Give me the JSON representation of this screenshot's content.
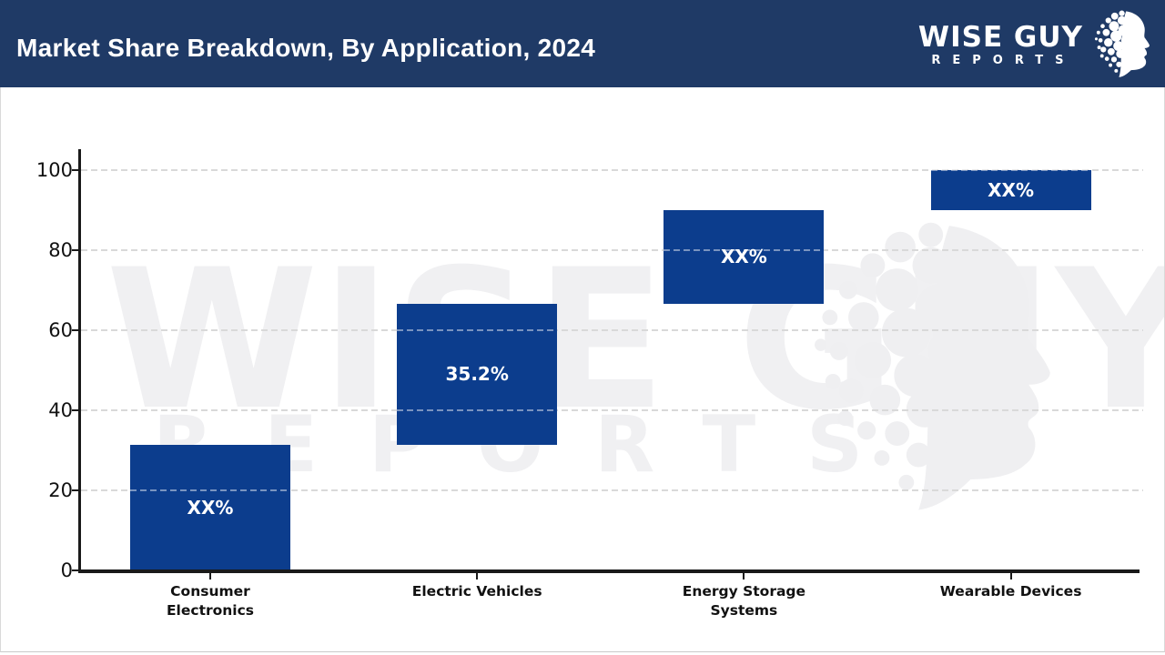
{
  "header": {
    "title": "Market Share Breakdown, By Application, 2024",
    "logo": {
      "line1": "WISE GUY",
      "line2": "REPORTS"
    }
  },
  "watermark": {
    "line1": "WISE GUY",
    "line2": "REPORTS"
  },
  "colors": {
    "header_bg": "#1f3a66",
    "bar": "#0c3d8d",
    "gridline": "#d9d9d9",
    "axis": "#1a1a1a",
    "watermark": "#f0f0f2",
    "bar_label_text": "#ffffff"
  },
  "chart_data": {
    "type": "bar",
    "subtype": "waterfall",
    "title": "Market Share Breakdown, By Application, 2024",
    "xlabel": "",
    "ylabel": "",
    "categories": [
      "Consumer Electronics",
      "Electric Vehicles",
      "Energy Storage Systems",
      "Wearable Devices"
    ],
    "tick_lines": [
      [
        "Consumer",
        "Electronics"
      ],
      [
        "Electric Vehicles"
      ],
      [
        "Energy Storage",
        "Systems"
      ],
      [
        "Wearable Devices"
      ]
    ],
    "segments": [
      {
        "category": "Consumer Electronics",
        "start": 0,
        "end": 31.4,
        "value": 31.4,
        "value_label": "XX%"
      },
      {
        "category": "Electric Vehicles",
        "start": 31.4,
        "end": 66.6,
        "value": 35.2,
        "value_label": "35.2%"
      },
      {
        "category": "Energy Storage Systems",
        "start": 66.6,
        "end": 90,
        "value": 23.4,
        "value_label": "XX%"
      },
      {
        "category": "Wearable Devices",
        "start": 90,
        "end": 100,
        "value": 10,
        "value_label": "XX%"
      }
    ],
    "yticks": [
      0,
      20,
      40,
      60,
      80,
      100
    ],
    "ylim": [
      0,
      105.2
    ],
    "grid": "horizontal dashed",
    "legend": "none"
  }
}
